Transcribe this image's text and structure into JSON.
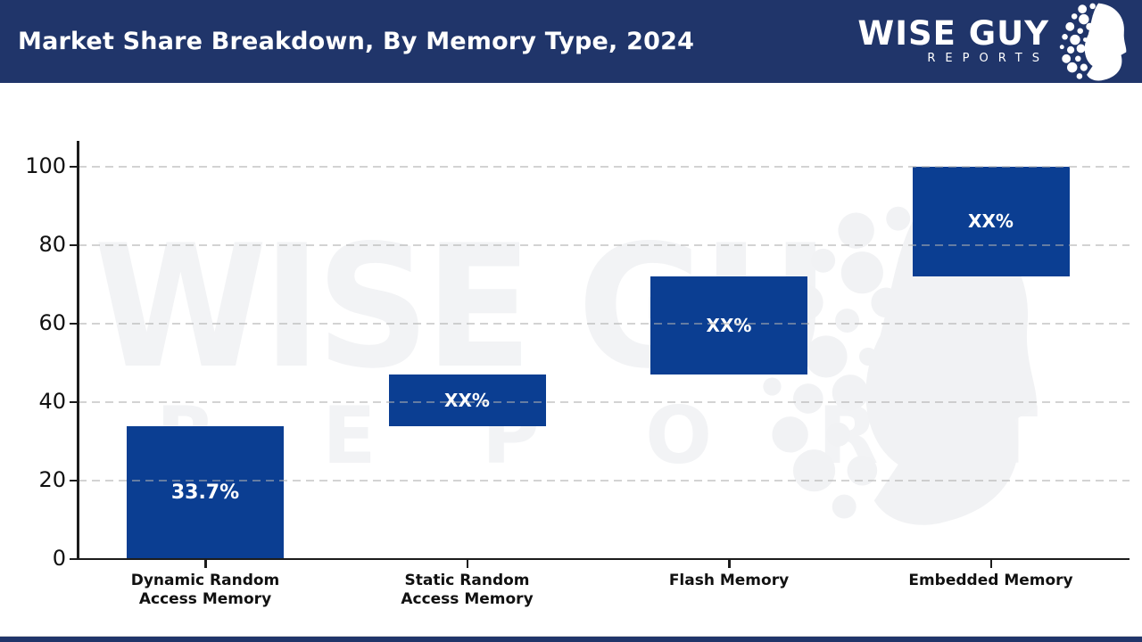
{
  "header": {
    "title": "Market Share Breakdown, By Memory Type, 2024",
    "brand": {
      "line1": "WISE GUY",
      "line2": "REPORTS"
    }
  },
  "watermark": {
    "line1": "WISE GU",
    "line2": "REPORTS"
  },
  "footer": {},
  "colors": {
    "header_bg": "#20356a",
    "bar_fill": "#0b3e92",
    "bar_label": "#ffffff",
    "axis": "#1c1c1c",
    "gridline": "#c9c9c9",
    "watermark": "#f2f3f5"
  },
  "chart_data": {
    "type": "bar",
    "subtype": "waterfall",
    "title": "Market Share Breakdown, By Memory Type, 2024",
    "categories": [
      "Dynamic Random Access Memory",
      "Static Random Access Memory",
      "Flash Memory",
      "Embedded Memory"
    ],
    "category_label_lines": [
      [
        "Dynamic Random",
        "Access Memory"
      ],
      [
        "Static Random",
        "Access Memory"
      ],
      [
        "Flash Memory"
      ],
      [
        "Embedded Memory"
      ]
    ],
    "series": [
      {
        "name": "Dynamic Random Access Memory",
        "start": 0,
        "end": 33.7,
        "label": "33.7%"
      },
      {
        "name": "Static Random Access Memory",
        "start": 33.7,
        "end": 47,
        "label": "XX%"
      },
      {
        "name": "Flash Memory",
        "start": 47,
        "end": 72,
        "label": "XX%"
      },
      {
        "name": "Embedded Memory",
        "start": 72,
        "end": 100,
        "label": "XX%"
      }
    ],
    "xlabel": "",
    "ylabel": "",
    "yticks": [
      0,
      20,
      40,
      60,
      80,
      100
    ],
    "ylim": [
      0,
      106
    ],
    "grid": "dashed horizontal",
    "legend": "none"
  }
}
